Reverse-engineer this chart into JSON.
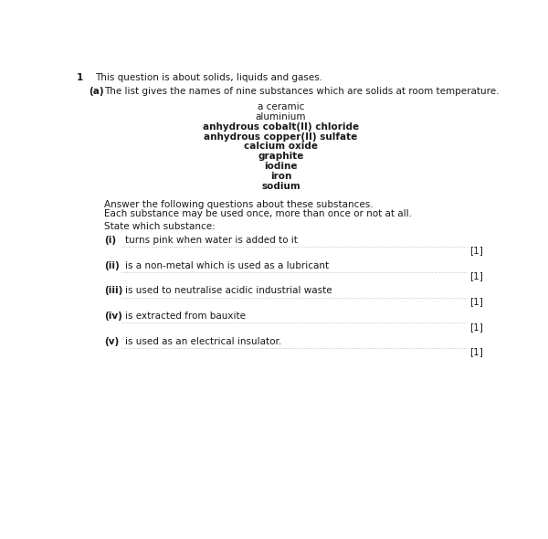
{
  "bg_color": "#ffffff",
  "question_number": "1",
  "question_text": "This question is about solids, liquids and gases.",
  "part_a_label": "(a)",
  "part_a_text": "The list gives the names of nine substances which are solids at room temperature.",
  "substances_normal": [
    "a ceramic",
    "aluminium"
  ],
  "substances_bold": [
    "anhydrous cobalt(II) chloride",
    "anhydrous copper(II) sulfate",
    "calcium oxide",
    "graphite",
    "iodine",
    "iron",
    "sodium"
  ],
  "instruction_line1": "Answer the following questions about these substances.",
  "instruction_line2": "Each substance may be used once, more than once or not at all.",
  "state_which": "State which substance:",
  "questions": [
    {
      "label": "(i)",
      "text": "turns pink when water is added to it"
    },
    {
      "label": "(ii)",
      "text": "is a non-metal which is used as a lubricant"
    },
    {
      "label": "(iii)",
      "text": "is used to neutralise acidic industrial waste"
    },
    {
      "label": "(iv)",
      "text": "is extracted from bauxite"
    },
    {
      "label": "(v)",
      "text": "is used as an electrical insulator."
    }
  ],
  "mark": "[1]",
  "font_size": 7.5,
  "dot_line_color": "#aaaaaa",
  "text_color": "#1a1a1a"
}
